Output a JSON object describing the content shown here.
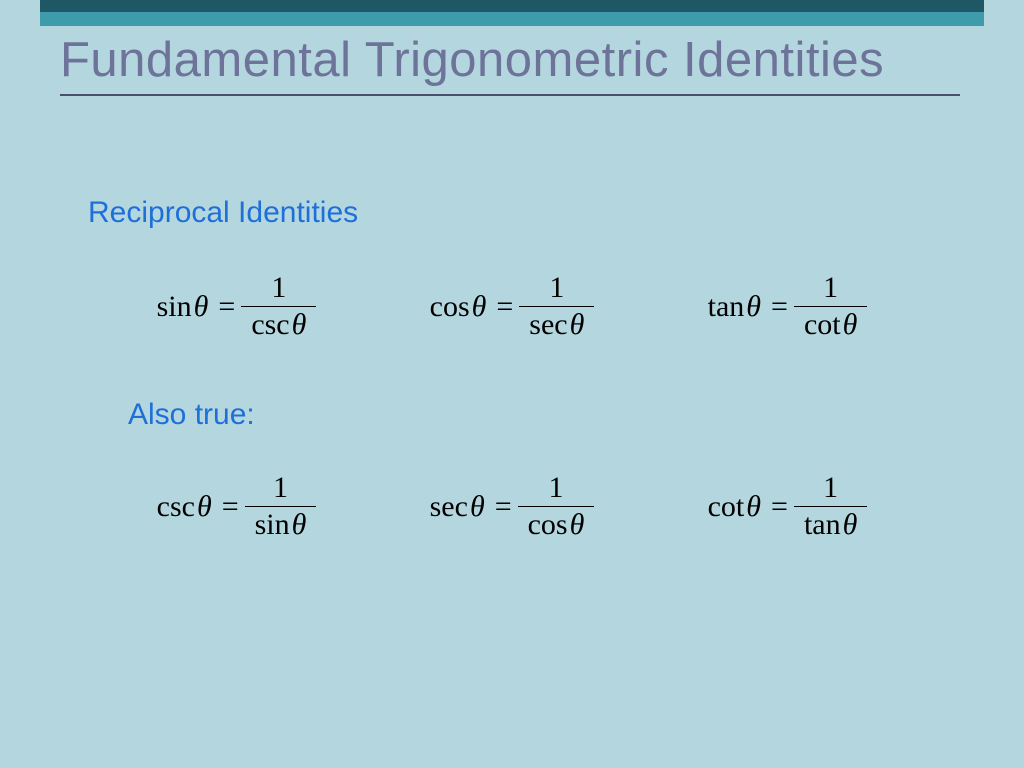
{
  "colors": {
    "background": "#b4d6de",
    "band_dark": "#1e5864",
    "band_light": "#3d9bac",
    "title": "#6d7399",
    "subtitle": "#1f6fd9",
    "equation": "#000000",
    "underline": "#4a4f6b"
  },
  "typography": {
    "title_fontsize": 49,
    "subtitle_fontsize": 30,
    "equation_fontsize": 30,
    "title_font": "Verdana",
    "equation_font": "Times New Roman"
  },
  "title": "Fundamental Trigonometric Identities",
  "subtitle1": "Reciprocal Identities",
  "subtitle2": "Also true:",
  "theta": "θ",
  "equals": "=",
  "one": "1",
  "row1": [
    {
      "lhs_fn": "sin",
      "num": "1",
      "den_fn": "csc"
    },
    {
      "lhs_fn": "cos",
      "num": "1",
      "den_fn": "sec"
    },
    {
      "lhs_fn": "tan",
      "num": "1",
      "den_fn": "cot"
    }
  ],
  "row2": [
    {
      "lhs_fn": "csc",
      "num": "1",
      "den_fn": "sin"
    },
    {
      "lhs_fn": "sec",
      "num": "1",
      "den_fn": "cos"
    },
    {
      "lhs_fn": "cot",
      "num": "1",
      "den_fn": "tan"
    }
  ]
}
